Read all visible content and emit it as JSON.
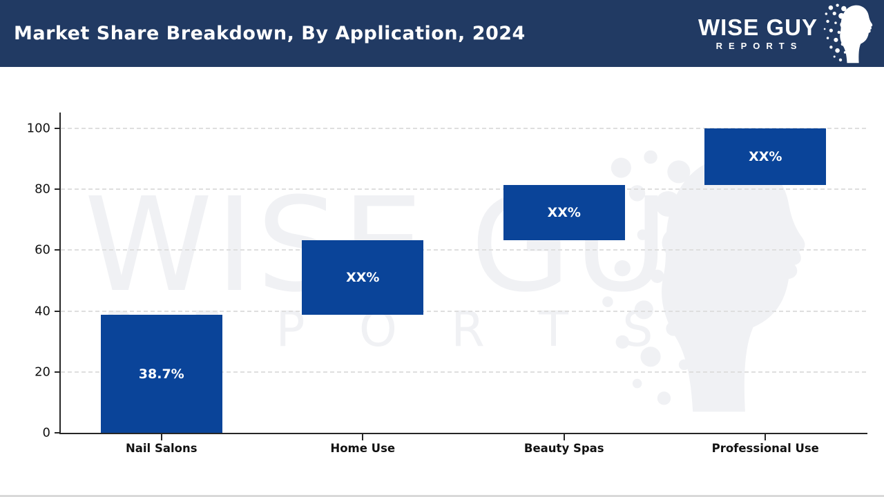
{
  "header": {
    "title": "Market Share Breakdown, By Application, 2024",
    "logo": {
      "line1": "WISE GUY",
      "line2": "REPORTS"
    }
  },
  "watermark": {
    "line1": "WISE GUY",
    "line2": "R E P O R T S"
  },
  "colors": {
    "header_bg": "#213a63",
    "header_text": "#ffffff",
    "bar": "#0a4499",
    "bar_label": "#ffffff",
    "grid": "#dedede",
    "axis": "#262626",
    "tick_label": "#111111",
    "watermark": "#f0f1f4",
    "logo_mark": "#ffffff"
  },
  "chart_data": {
    "type": "bar",
    "subtype": "floating-waterfall",
    "title": "Market Share Breakdown, By Application, 2024",
    "categories": [
      "Nail Salons",
      "Home Use",
      "Beauty Spas",
      "Professional Use"
    ],
    "series": [
      {
        "name": "Market Share (%)",
        "segments": [
          {
            "category": "Nail Salons",
            "start": 0,
            "end": 38.7,
            "label": "38.7%"
          },
          {
            "category": "Home Use",
            "start": 38.7,
            "end": 63.3,
            "label": "XX%"
          },
          {
            "category": "Beauty Spas",
            "start": 63.3,
            "end": 81.4,
            "label": "XX%"
          },
          {
            "category": "Professional Use",
            "start": 81.4,
            "end": 100,
            "label": "XX%"
          }
        ]
      }
    ],
    "xlabel": "",
    "ylabel": "",
    "ylim": [
      0,
      100
    ],
    "yticks": [
      0,
      20,
      40,
      60,
      80,
      100
    ],
    "grid": "horizontal-dashed",
    "legend": "none"
  }
}
